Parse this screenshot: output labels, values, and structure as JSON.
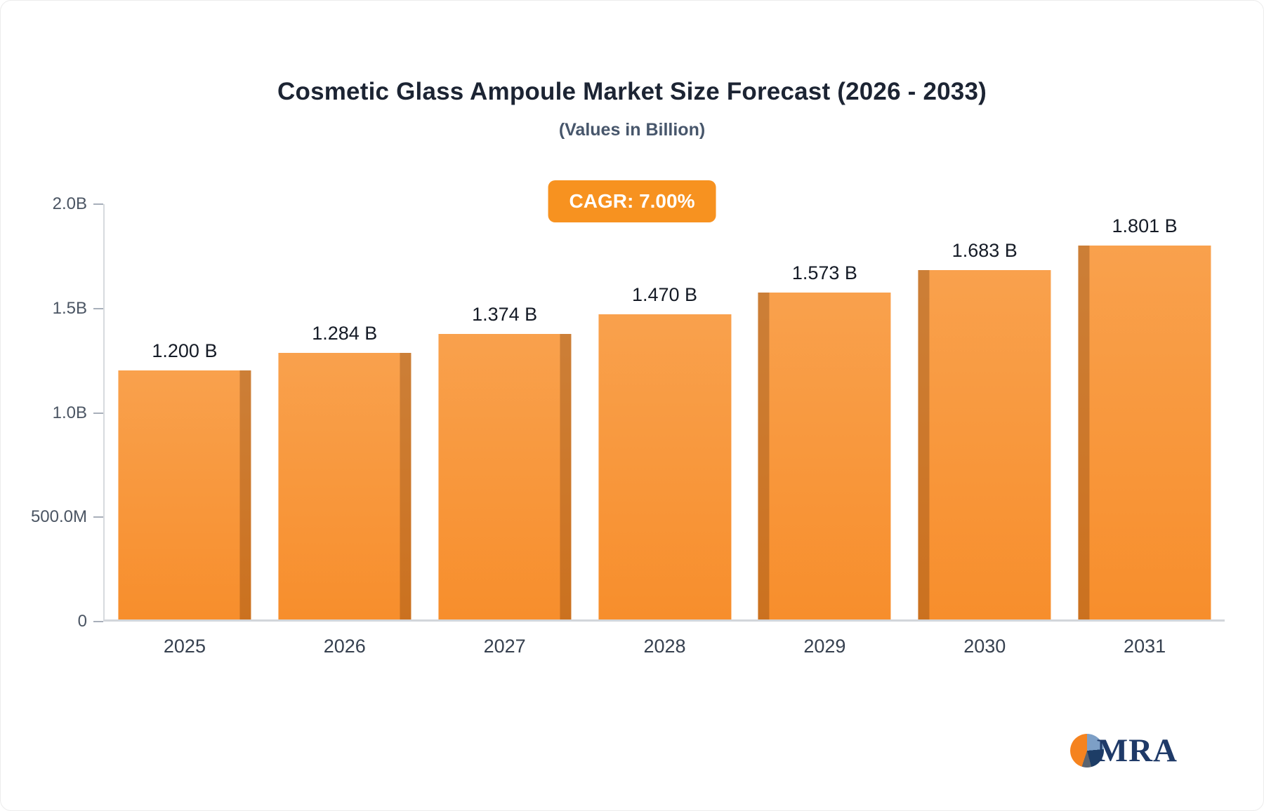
{
  "chart_data": {
    "type": "bar",
    "title": "Cosmetic Glass Ampoule Market Size Forecast (2026 - 2033)",
    "subtitle": "(Values in Billion)",
    "badge": "CAGR: 7.00%",
    "categories": [
      "2025",
      "2026",
      "2027",
      "2028",
      "2029",
      "2030",
      "2031"
    ],
    "values": [
      1.2,
      1.284,
      1.374,
      1.47,
      1.573,
      1.683,
      1.801
    ],
    "value_labels": [
      "1.200 B",
      "1.284 B",
      "1.374 B",
      "1.470 B",
      "1.573 B",
      "1.683 B",
      "1.801 B"
    ],
    "xlabel": "",
    "ylabel": "",
    "ylim": [
      0,
      2.0
    ],
    "yticks": [
      "2.0B",
      "1.5B",
      "1.0B",
      "500.0M",
      "0"
    ],
    "grid": false,
    "legend_position": "none",
    "bar_color": "#f7963b",
    "bar_side_color": "#c97a1f",
    "badge_color": "#f79220"
  },
  "logo": {
    "text": "MRA"
  }
}
